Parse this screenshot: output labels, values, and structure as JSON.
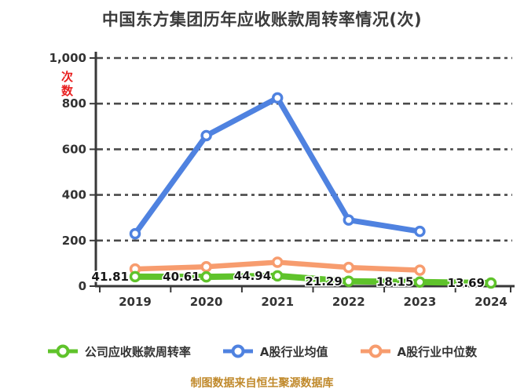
{
  "colors": {
    "background": "#ffffff",
    "title_text": "#3b3b3b",
    "axis_text": "#333333",
    "grid_line": "#4a4a4a",
    "unit_label_red": "#e82020",
    "footer_gold": "#c0892b",
    "series_company_green": "#5fc32b",
    "series_mean_blue": "#4f82e0",
    "series_median_orange": "#f79c6e"
  },
  "footer": {
    "text": "制图数据来自恒生聚源数据库"
  },
  "chart_data": {
    "type": "line",
    "title": "中国东方集团历年应收账款周转率情况(次)",
    "y_unit_label": "次数",
    "x_labels": [
      "2019",
      "2020",
      "2021",
      "2022",
      "2023",
      "2024"
    ],
    "ylim": [
      0,
      1000
    ],
    "ytick_values": [
      0,
      200,
      400,
      600,
      800,
      1000
    ],
    "ytick_labels": [
      "0",
      "200",
      "400",
      "600",
      "800",
      "1,000"
    ],
    "grid": "horizontal dashed",
    "legend_position": "bottom",
    "series": [
      {
        "key": "company",
        "name": "公司应收账款周转率",
        "color": "#5fc32b",
        "values": [
          41.81,
          40.61,
          44.94,
          21.29,
          18.15,
          13.69
        ],
        "point_labels": [
          "41.81",
          "40.61",
          "44.94",
          "21.29",
          "18.15",
          "13.69"
        ]
      },
      {
        "key": "industry-mean",
        "name": "A股行业均值",
        "color": "#4f82e0",
        "values": [
          230,
          660,
          825,
          290,
          240,
          null
        ]
      },
      {
        "key": "industry-median",
        "name": "A股行业中位数",
        "color": "#f79c6e",
        "values": [
          75,
          85,
          105,
          82,
          70,
          null
        ]
      }
    ]
  }
}
